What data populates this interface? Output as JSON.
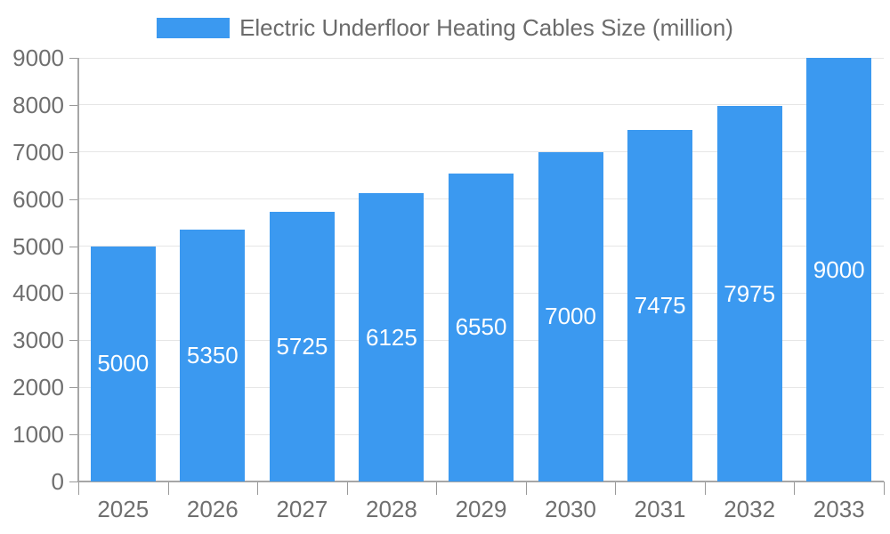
{
  "chart_data": {
    "type": "bar",
    "title": "Electric Underfloor Heating Cables Size (million)",
    "legend": {
      "position": "top",
      "label": "Electric Underfloor Heating Cables Size (million)",
      "swatch_color": "#3B99F0"
    },
    "categories": [
      "2025",
      "2026",
      "2027",
      "2028",
      "2029",
      "2030",
      "2031",
      "2032",
      "2033"
    ],
    "values": [
      5000,
      5350,
      5725,
      6125,
      6550,
      7000,
      7475,
      7975,
      9000
    ],
    "value_labels_shown": true,
    "xlabel": "",
    "ylabel": "",
    "ylim": [
      0,
      9000
    ],
    "ytick_step": 1000,
    "yticks": [
      0,
      1000,
      2000,
      3000,
      4000,
      5000,
      6000,
      7000,
      8000,
      9000
    ],
    "grid": true,
    "colors": {
      "bar": "#3B99F0",
      "bar_value_label": "#FFFFFF",
      "grid_line": "#E6E6E6",
      "axis_line": "#A6A6A6",
      "tick_mark": "#999999",
      "tick_label": "#6F6F6F",
      "legend_text": "#6B6B6B",
      "background": "#FFFFFF"
    }
  }
}
